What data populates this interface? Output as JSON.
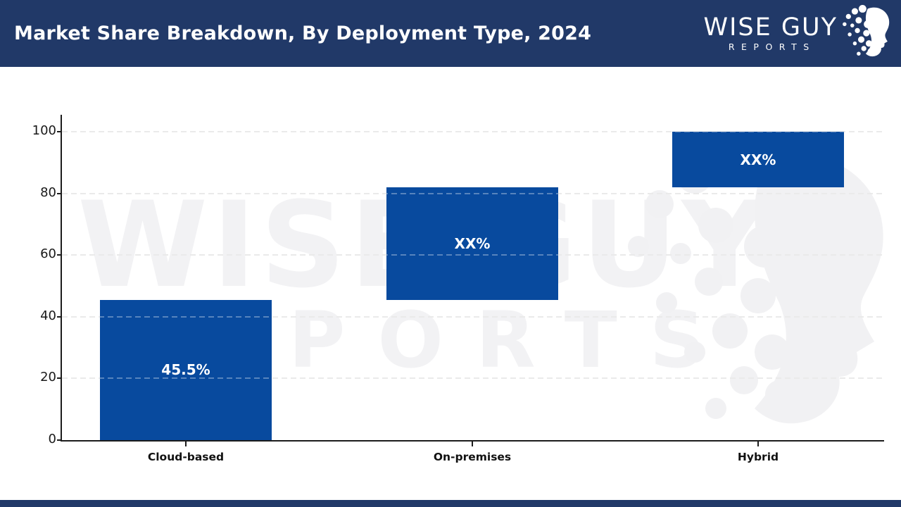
{
  "header": {
    "title": "Market Share Breakdown, By Deployment Type, 2024",
    "logo": {
      "name": "WISE GUY",
      "sub": "REPORTS"
    }
  },
  "watermark": {
    "line1": "WISE GUY",
    "line2": "REPORTS"
  },
  "colors": {
    "header_bg": "#213968",
    "footer_bg": "#213968",
    "bar": "#084a9e",
    "axis": "#1c1c1c",
    "grid": "#e0e0e0",
    "grid_over_bar": "rgba(255,255,255,0.32)",
    "tick_label": "#1a1a1a",
    "bar_label": "#ffffff",
    "watermark": "#f2f2f4"
  },
  "chart_data": {
    "type": "bar",
    "subtype": "waterfall",
    "title": "Market Share Breakdown, By Deployment Type, 2024",
    "categories": [
      "Cloud-based",
      "On-premises",
      "Hybrid"
    ],
    "segments": [
      {
        "category": "Cloud-based",
        "start": 0,
        "end": 45.5,
        "label": "45.5%"
      },
      {
        "category": "On-premises",
        "start": 45.5,
        "end": 81.9,
        "label": "XX%"
      },
      {
        "category": "Hybrid",
        "start": 81.9,
        "end": 100,
        "label": "XX%"
      }
    ],
    "bar_labels": [
      "45.5%",
      "XX%",
      "XX%"
    ],
    "xlabel": "",
    "ylabel": "",
    "ylim": [
      0,
      100
    ],
    "yticks": [
      0,
      20,
      40,
      60,
      80,
      100
    ],
    "grid": "horizontal-dashed",
    "legend": "none"
  }
}
